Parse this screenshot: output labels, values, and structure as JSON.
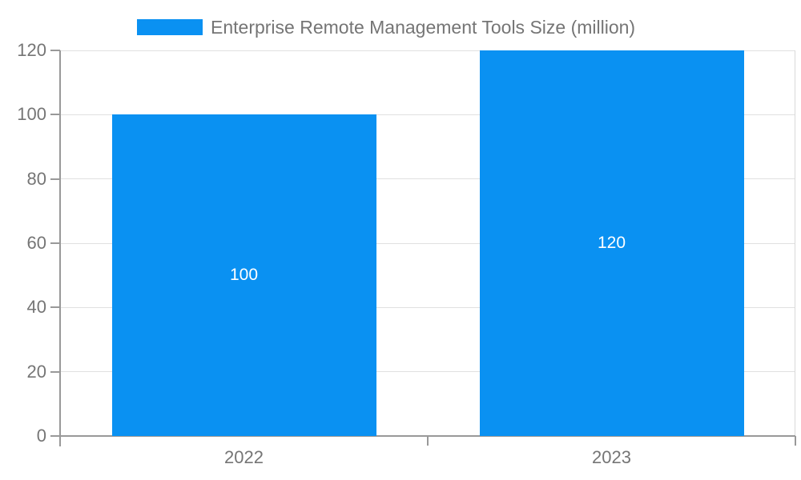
{
  "chart_data": {
    "type": "bar",
    "title": "Enterprise Remote Management Tools Size (million)",
    "categories": [
      "2022",
      "2023"
    ],
    "values": [
      100,
      120
    ],
    "data_labels": [
      "100",
      "120"
    ],
    "xlabel": "",
    "ylabel": "",
    "ylim": [
      0,
      120
    ],
    "yticks": [
      0,
      20,
      40,
      60,
      80,
      100,
      120
    ],
    "grid": true,
    "legend_position": "top",
    "legend_entries": [
      "Enterprise Remote Management Tools Size (million)"
    ],
    "colors": {
      "bar": "#0A91F2",
      "axis_line": "#999999",
      "gridline": "#e0e0e0",
      "plot_border": "#d9d9d9",
      "tick_label": "#757575",
      "legend_text": "#757575",
      "value_label": "#ffffff",
      "background": "#ffffff"
    }
  }
}
